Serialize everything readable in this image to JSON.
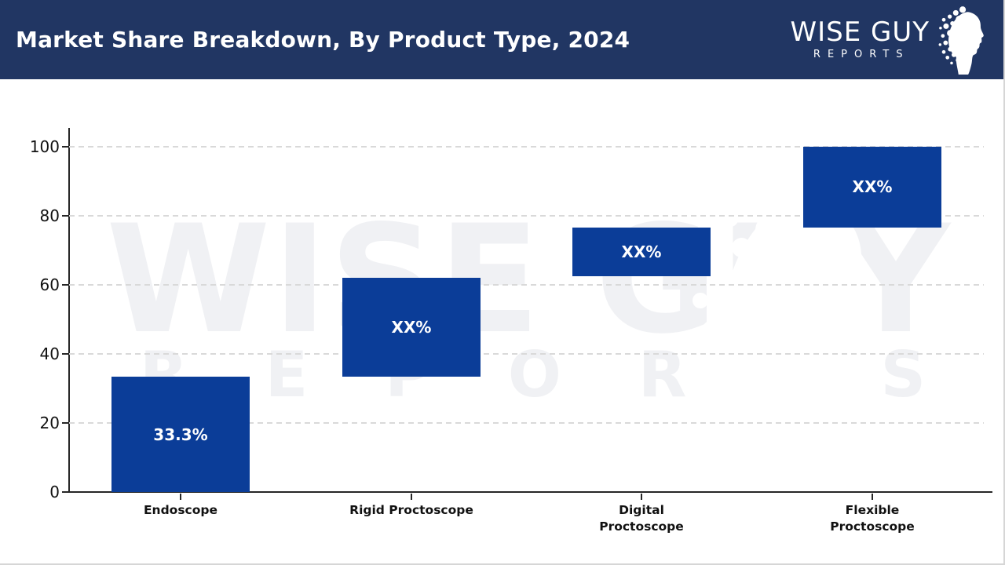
{
  "header": {
    "title": "Market Share Breakdown, By Product Type, 2024",
    "logo": {
      "line1": "WISE GUY",
      "line2": "REPORTS"
    }
  },
  "watermark": {
    "line1": "WISE GUY",
    "line2": "REPORTS"
  },
  "colors": {
    "header_bg": "#213663",
    "bar_blue": "#0b3d98",
    "grid": "#d9d9d9",
    "axis": "#262626",
    "watermark": "#f0f1f4",
    "bar_label": "#ffffff"
  },
  "chart_data": {
    "type": "bar",
    "subtype": "waterfall",
    "title": "Market Share Breakdown, By Product Type, 2024",
    "categories": [
      "Endoscope",
      "Rigid Proctoscope",
      "Digital Proctoscope",
      "Flexible Proctoscope"
    ],
    "category_lines": [
      [
        "Endoscope"
      ],
      [
        "Rigid Proctoscope"
      ],
      [
        "Digital",
        "Proctoscope"
      ],
      [
        "Flexible",
        "Proctoscope"
      ]
    ],
    "series": [
      {
        "name": "Market Share",
        "segments": [
          {
            "category": "Endoscope",
            "from": 0,
            "to": 33.3,
            "label": "33.3%"
          },
          {
            "category": "Rigid Proctoscope",
            "from": 33.4,
            "to": 62.0,
            "label": "XX%"
          },
          {
            "category": "Digital Proctoscope",
            "from": 62.4,
            "to": 76.5,
            "label": "XX%"
          },
          {
            "category": "Flexible Proctoscope",
            "from": 76.7,
            "to": 100,
            "label": "XX%"
          }
        ]
      }
    ],
    "ylabel": "",
    "xlabel": "",
    "ylim": [
      0,
      100
    ],
    "yticks": [
      0,
      20,
      40,
      60,
      80,
      100
    ],
    "grid": "horizontal-dashed",
    "legend": "none"
  }
}
